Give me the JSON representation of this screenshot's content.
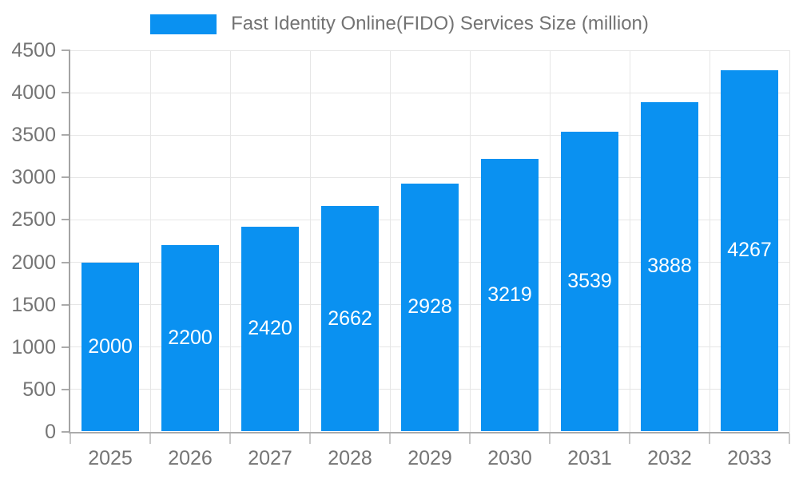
{
  "legend": {
    "label": "Fast Identity Online(FIDO) Services Size (million)"
  },
  "chart_data": {
    "type": "bar",
    "title": "Fast Identity Online(FIDO) Services Size (million)",
    "categories": [
      "2025",
      "2026",
      "2027",
      "2028",
      "2029",
      "2030",
      "2031",
      "2032",
      "2033"
    ],
    "series": [
      {
        "name": "Fast Identity Online(FIDO) Services Size (million)",
        "values": [
          2000,
          2200,
          2420,
          2662,
          2928,
          3219,
          3539,
          3888,
          4267
        ]
      }
    ],
    "xlabel": "",
    "ylabel": "",
    "ylim": [
      0,
      4500
    ],
    "yticks": [
      0,
      500,
      1000,
      1500,
      2000,
      2500,
      3000,
      3500,
      4000,
      4500
    ],
    "grid": true,
    "legend_position": "top",
    "bar_color": "#0a91f1",
    "value_label_color": "#ffffff",
    "axis_label_color": "#757575",
    "gridline_color": "#e6e6e6",
    "axis_line_color": "#ababab"
  }
}
